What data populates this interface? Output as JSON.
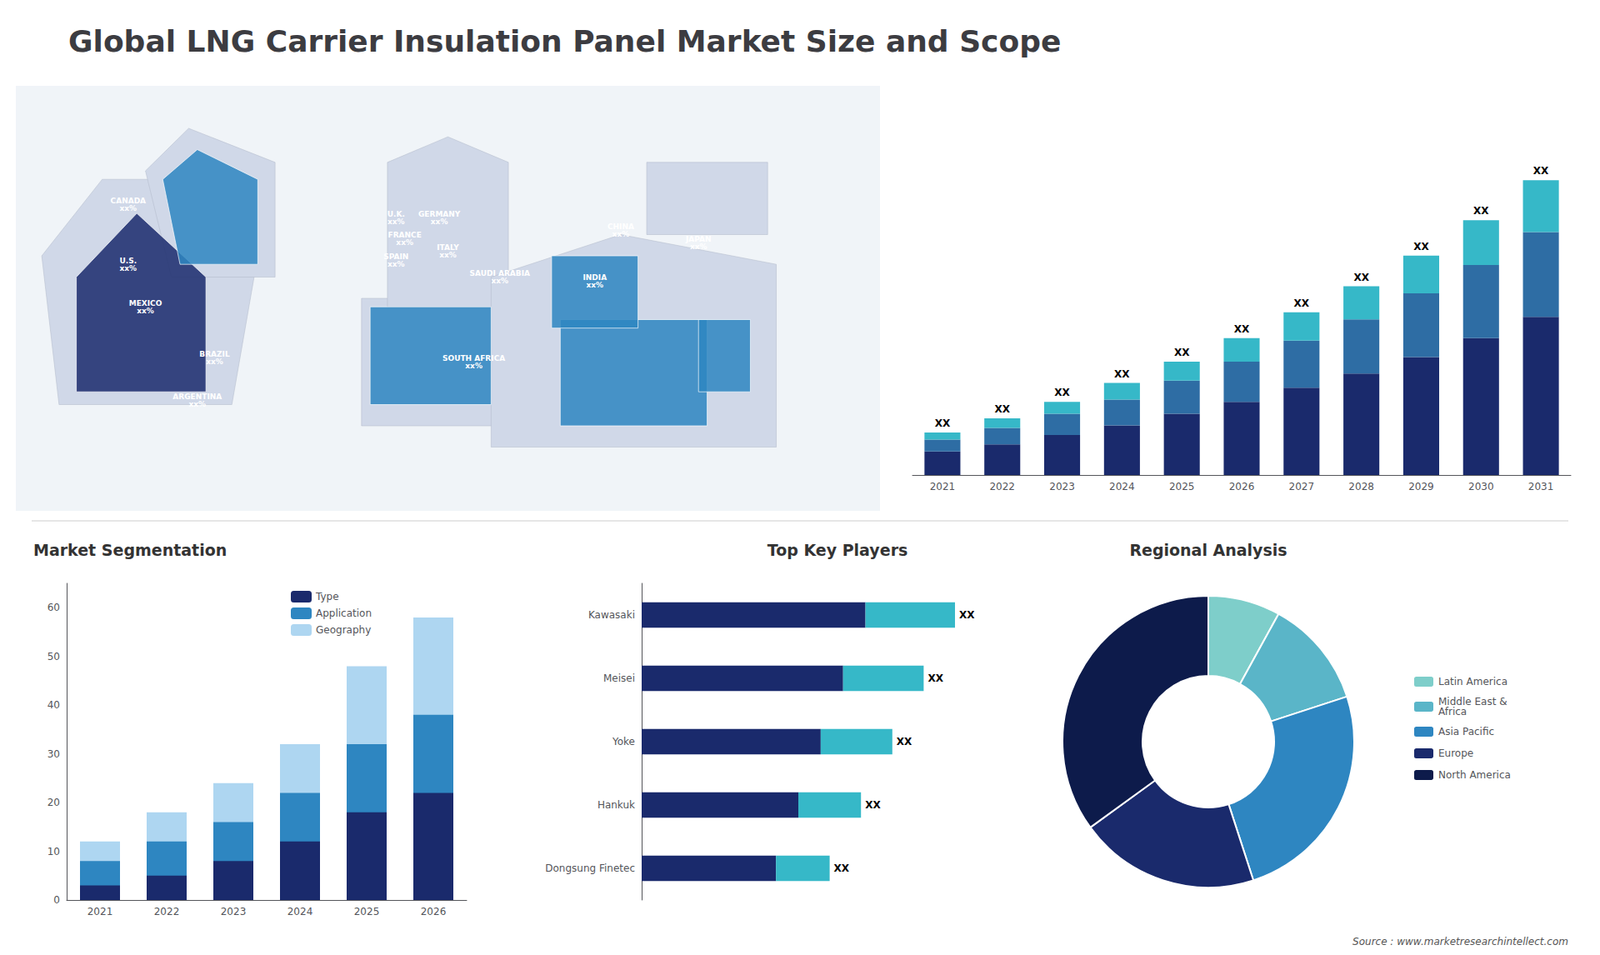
{
  "title": "Global LNG Carrier Insulation Panel Market Size and Scope",
  "annotations": [
    "Source : www.marketresearchintellect.com"
  ],
  "chart_data": [
    {
      "type": "map",
      "annotations": [
        "U.S.\nxx%",
        "CANADA\nxx%",
        "MEXICO\nxx%",
        "BRAZIL\nxx%",
        "ARGENTINA\nxx%",
        "U.K.\nxx%",
        "FRANCE\nxx%",
        "SPAIN\nxx%",
        "GERMANY\nxx%",
        "ITALY\nxx%",
        "SAUDI ARABIA\nxx%",
        "SOUTH AFRICA\nxx%",
        "CHINA\nxx%",
        "INDIA\nxx%",
        "JAPAN\nxx%"
      ]
    },
    {
      "type": "bar",
      "stacked": true,
      "categories": [
        "2021",
        "2022",
        "2023",
        "2024",
        "2025",
        "2026",
        "2027",
        "2028",
        "2029",
        "2030",
        "2031"
      ],
      "series": [
        {
          "color": "#1a2a6c",
          "values": [
            1,
            1.3,
            1.7,
            2.1,
            2.6,
            3.1,
            3.7,
            4.3,
            5.0,
            5.8,
            6.7
          ]
        },
        {
          "color": "#2e6da4",
          "values": [
            0.5,
            0.7,
            0.9,
            1.1,
            1.4,
            1.7,
            2.0,
            2.3,
            2.7,
            3.1,
            3.6
          ]
        },
        {
          "color": "#36b8c8",
          "values": [
            0.3,
            0.4,
            0.5,
            0.7,
            0.8,
            1.0,
            1.2,
            1.4,
            1.6,
            1.9,
            2.2
          ]
        }
      ],
      "ylim": [
        0,
        16.25
      ],
      "annotations": [
        "XX",
        "XX",
        "XX",
        "XX",
        "XX",
        "XX",
        "XX",
        "XX",
        "XX",
        "XX",
        "XX"
      ],
      "tick_labels": "x",
      "grid": false
    },
    {
      "type": "bar",
      "title": "Market Segmentation",
      "stacked": false,
      "categories": [
        "2021",
        "2022",
        "2023",
        "2024",
        "2025",
        "2026"
      ],
      "series": [
        {
          "name": "Geography",
          "color": "#aed6f1",
          "values": [
            12,
            18,
            24,
            32,
            48,
            58
          ]
        },
        {
          "name": "Application",
          "color": "#2e86c1",
          "values": [
            8,
            12,
            16,
            22,
            32,
            38
          ]
        },
        {
          "name": "Type",
          "color": "#1a2a6c",
          "values": [
            3,
            5,
            8,
            12,
            18,
            22
          ]
        }
      ],
      "ylim": [
        0,
        65
      ],
      "yticks": [
        0,
        10,
        20,
        30,
        40,
        50,
        60
      ],
      "grid": false,
      "legend": "upper right"
    },
    {
      "type": "bar",
      "title": "Top Key Players",
      "orientation": "horizontal",
      "stacked": true,
      "categories": [
        "Kawasaki",
        "Meisei",
        "Yoke",
        "Hankuk",
        "Dongsung Finetec"
      ],
      "series": [
        {
          "color": "#1a2a6c",
          "values": [
            5,
            4.5,
            4,
            3.5,
            3
          ]
        },
        {
          "color": "#36b8c8",
          "values": [
            2,
            1.8,
            1.6,
            1.4,
            1.2
          ]
        }
      ],
      "xlim": [
        0,
        8.75
      ],
      "annotations": [
        "XX",
        "XX",
        "XX",
        "XX",
        "XX"
      ],
      "tick_labels": "y",
      "grid": false
    },
    {
      "type": "pie",
      "title": "Regional Analysis",
      "categories": [
        "Latin America",
        "Middle East &\nAfrica",
        "Asia Pacific",
        "Europe",
        "North America"
      ],
      "values": [
        8,
        12,
        25,
        20,
        35
      ],
      "colors": [
        "#7ececa",
        "#5ab5c8",
        "#2e86c1",
        "#1a2a6c",
        "#0d1b4b"
      ],
      "legend": "right"
    }
  ]
}
